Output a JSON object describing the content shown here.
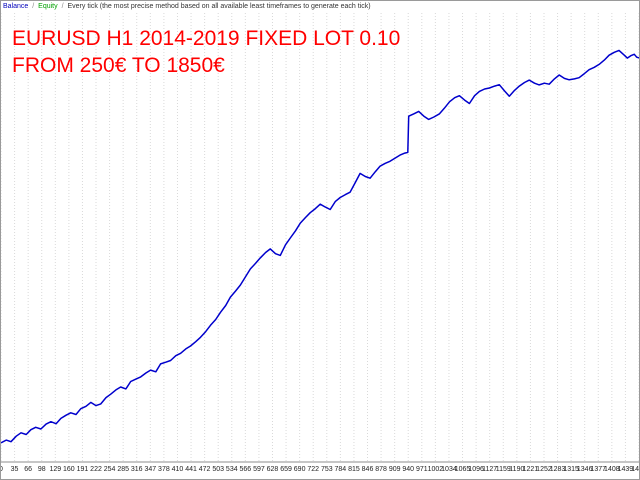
{
  "header": {
    "balance_label": "Balance",
    "separator": "/",
    "equity_label": "Equity",
    "method_label": "Every tick (the most precise method based on all available least timeframes to generate each tick)"
  },
  "annotation": {
    "line1": "EURUSD H1 2014-2019 FIXED LOT 0.10",
    "line2": "FROM 250€ TO 1850€",
    "color": "#ff0000"
  },
  "colors": {
    "balance_line": "#0000cc",
    "gridline": "#d9d9d9",
    "axis_line": "#8c8c8c",
    "axis_text": "#222222",
    "annotation_text": "#ff0000"
  },
  "chart_data": {
    "type": "line",
    "title": "",
    "xlabel": "",
    "ylabel": "",
    "grid": "vertical-dotted",
    "x_range": [
      0,
      1471
    ],
    "y_range": [
      200,
      2000
    ],
    "x_ticks": [
      0,
      35,
      66,
      98,
      129,
      160,
      191,
      222,
      254,
      285,
      316,
      347,
      378,
      410,
      441,
      472,
      503,
      534,
      566,
      597,
      628,
      659,
      690,
      722,
      753,
      784,
      815,
      846,
      878,
      909,
      940,
      971,
      1002,
      1034,
      1065,
      1096,
      1127,
      1159,
      1190,
      1221,
      1252,
      1283,
      1315,
      1346,
      1377,
      1408,
      1439,
      1471
    ],
    "series": [
      {
        "name": "Balance",
        "color": "#0000cc",
        "points": [
          [
            0,
            250
          ],
          [
            12,
            262
          ],
          [
            23,
            255
          ],
          [
            35,
            278
          ],
          [
            46,
            292
          ],
          [
            58,
            285
          ],
          [
            69,
            305
          ],
          [
            80,
            315
          ],
          [
            92,
            308
          ],
          [
            104,
            328
          ],
          [
            115,
            338
          ],
          [
            127,
            330
          ],
          [
            138,
            352
          ],
          [
            150,
            365
          ],
          [
            161,
            375
          ],
          [
            173,
            368
          ],
          [
            184,
            392
          ],
          [
            196,
            402
          ],
          [
            207,
            418
          ],
          [
            219,
            405
          ],
          [
            230,
            412
          ],
          [
            242,
            438
          ],
          [
            253,
            452
          ],
          [
            265,
            470
          ],
          [
            276,
            482
          ],
          [
            288,
            474
          ],
          [
            299,
            505
          ],
          [
            311,
            515
          ],
          [
            322,
            524
          ],
          [
            334,
            540
          ],
          [
            345,
            552
          ],
          [
            357,
            545
          ],
          [
            368,
            578
          ],
          [
            380,
            585
          ],
          [
            391,
            592
          ],
          [
            403,
            612
          ],
          [
            414,
            622
          ],
          [
            426,
            640
          ],
          [
            437,
            652
          ],
          [
            449,
            670
          ],
          [
            460,
            688
          ],
          [
            472,
            712
          ],
          [
            483,
            738
          ],
          [
            495,
            762
          ],
          [
            506,
            792
          ],
          [
            518,
            820
          ],
          [
            529,
            855
          ],
          [
            541,
            880
          ],
          [
            552,
            905
          ],
          [
            564,
            940
          ],
          [
            575,
            972
          ],
          [
            587,
            995
          ],
          [
            598,
            1018
          ],
          [
            610,
            1040
          ],
          [
            621,
            1055
          ],
          [
            633,
            1035
          ],
          [
            644,
            1028
          ],
          [
            656,
            1072
          ],
          [
            667,
            1100
          ],
          [
            679,
            1130
          ],
          [
            690,
            1162
          ],
          [
            702,
            1185
          ],
          [
            713,
            1205
          ],
          [
            725,
            1222
          ],
          [
            736,
            1240
          ],
          [
            748,
            1228
          ],
          [
            759,
            1218
          ],
          [
            771,
            1252
          ],
          [
            782,
            1268
          ],
          [
            794,
            1280
          ],
          [
            805,
            1290
          ],
          [
            817,
            1330
          ],
          [
            828,
            1368
          ],
          [
            840,
            1355
          ],
          [
            851,
            1348
          ],
          [
            863,
            1375
          ],
          [
            874,
            1398
          ],
          [
            886,
            1410
          ],
          [
            897,
            1418
          ],
          [
            909,
            1432
          ],
          [
            920,
            1444
          ],
          [
            931,
            1452
          ],
          [
            938,
            1455
          ],
          [
            940,
            1605
          ],
          [
            952,
            1615
          ],
          [
            963,
            1625
          ],
          [
            975,
            1605
          ],
          [
            986,
            1592
          ],
          [
            998,
            1602
          ],
          [
            1011,
            1615
          ],
          [
            1022,
            1638
          ],
          [
            1034,
            1665
          ],
          [
            1046,
            1682
          ],
          [
            1057,
            1690
          ],
          [
            1069,
            1672
          ],
          [
            1080,
            1658
          ],
          [
            1092,
            1690
          ],
          [
            1103,
            1708
          ],
          [
            1115,
            1718
          ],
          [
            1126,
            1722
          ],
          [
            1138,
            1730
          ],
          [
            1149,
            1736
          ],
          [
            1161,
            1710
          ],
          [
            1172,
            1688
          ],
          [
            1184,
            1712
          ],
          [
            1195,
            1730
          ],
          [
            1207,
            1745
          ],
          [
            1218,
            1755
          ],
          [
            1230,
            1742
          ],
          [
            1241,
            1735
          ],
          [
            1253,
            1742
          ],
          [
            1264,
            1738
          ],
          [
            1276,
            1760
          ],
          [
            1287,
            1776
          ],
          [
            1299,
            1762
          ],
          [
            1310,
            1756
          ],
          [
            1322,
            1760
          ],
          [
            1333,
            1765
          ],
          [
            1345,
            1782
          ],
          [
            1356,
            1798
          ],
          [
            1368,
            1808
          ],
          [
            1379,
            1820
          ],
          [
            1391,
            1838
          ],
          [
            1402,
            1858
          ],
          [
            1414,
            1870
          ],
          [
            1425,
            1878
          ],
          [
            1437,
            1858
          ],
          [
            1444,
            1846
          ],
          [
            1452,
            1856
          ],
          [
            1460,
            1862
          ],
          [
            1466,
            1850
          ],
          [
            1471,
            1847
          ]
        ]
      }
    ]
  }
}
